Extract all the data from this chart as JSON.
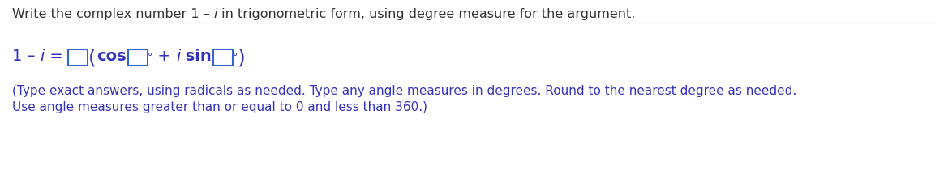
{
  "title_prefix": "Write the complex number 1 – ",
  "title_italic": "i",
  "title_suffix": " in trigonometric form, using degree measure for the argument.",
  "background_color": "#ffffff",
  "title_color": "#333333",
  "blue_color": "#3333bb",
  "box_border_color": "#3366cc",
  "divider_color": "#cccccc",
  "note_line1": "(Type exact answers, using radicals as needed. Type any angle measures in degrees. Round to the nearest degree as needed.",
  "note_line2": "Use angle measures greater than or equal to 0 and less than 360.)",
  "title_fontsize": 11.5,
  "eq_fontsize": 14,
  "note_fontsize": 11,
  "figsize": [
    11.69,
    2.31
  ],
  "dpi": 100
}
